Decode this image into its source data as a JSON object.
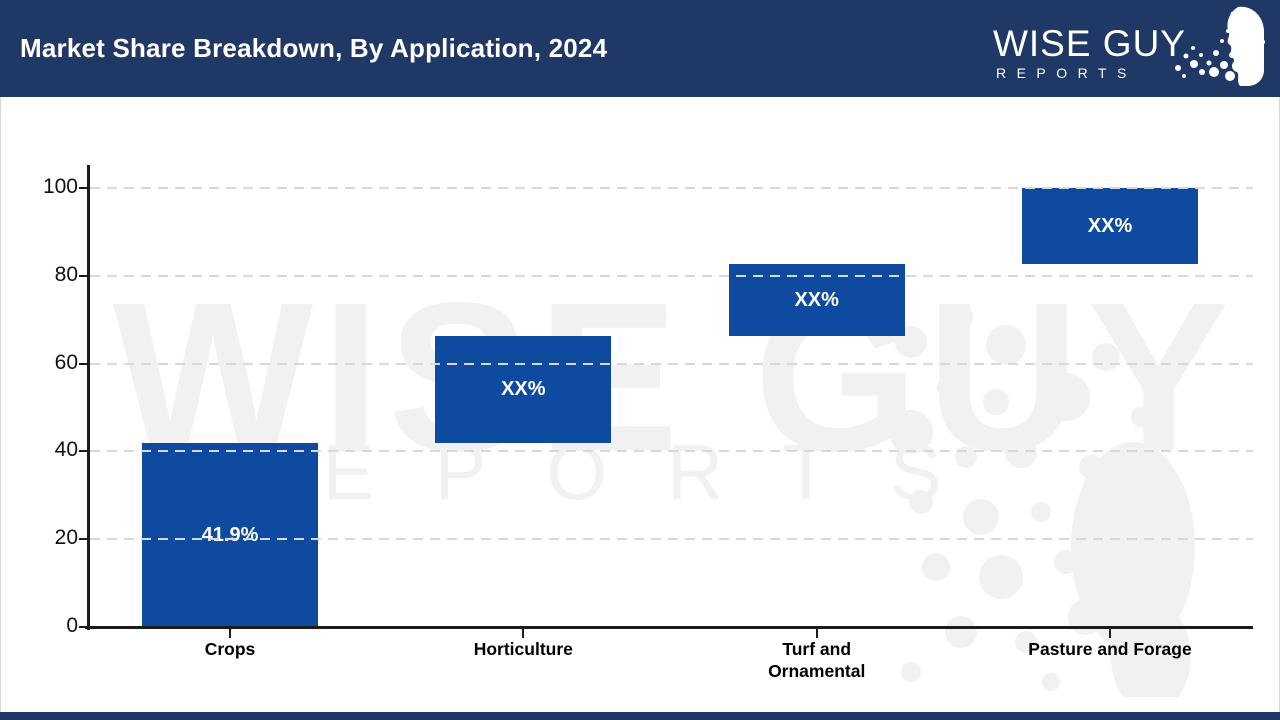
{
  "header": {
    "title": "Market Share Breakdown, By Application, 2024",
    "logo": {
      "line1": "WISE GUY",
      "line2": "REPORTS"
    }
  },
  "watermark": {
    "line1": "WISE GUY",
    "line2": "REPORTS"
  },
  "chart_data": {
    "type": "bar",
    "subtype": "waterfall",
    "title": "Market Share Breakdown, By Application, 2024",
    "categories": [
      "Crops",
      "Horticulture",
      "Turf and Ornamental",
      "Pasture and Forage"
    ],
    "category_lines": [
      [
        "Crops"
      ],
      [
        "Horticulture"
      ],
      [
        "Turf and",
        "Ornamental"
      ],
      [
        "Pasture and Forage"
      ]
    ],
    "series": [
      {
        "name": "Market share (%)",
        "segments": [
          {
            "category": "Crops",
            "start": 0,
            "end": 41.9,
            "label": "41.9%"
          },
          {
            "category": "Horticulture",
            "start": 42,
            "end": 66.3,
            "label": "XX%"
          },
          {
            "category": "Turf and Ornamental",
            "start": 66.3,
            "end": 82.6,
            "label": "XX%"
          },
          {
            "category": "Pasture and Forage",
            "start": 82.6,
            "end": 100,
            "label": "XX%"
          }
        ]
      }
    ],
    "ylim": [
      0,
      100
    ],
    "yticks": [
      0,
      20,
      40,
      60,
      80,
      100
    ],
    "grid": {
      "horizontal": true,
      "style": "dashed",
      "color": "#d8d8d8"
    },
    "legend": "none",
    "bar_color": "#0E4BA0",
    "bar_label_color": "#ffffff",
    "axis_color": "#1c1c1c",
    "header_color": "#1F3866",
    "watermark_color": "#f1f1f1"
  }
}
